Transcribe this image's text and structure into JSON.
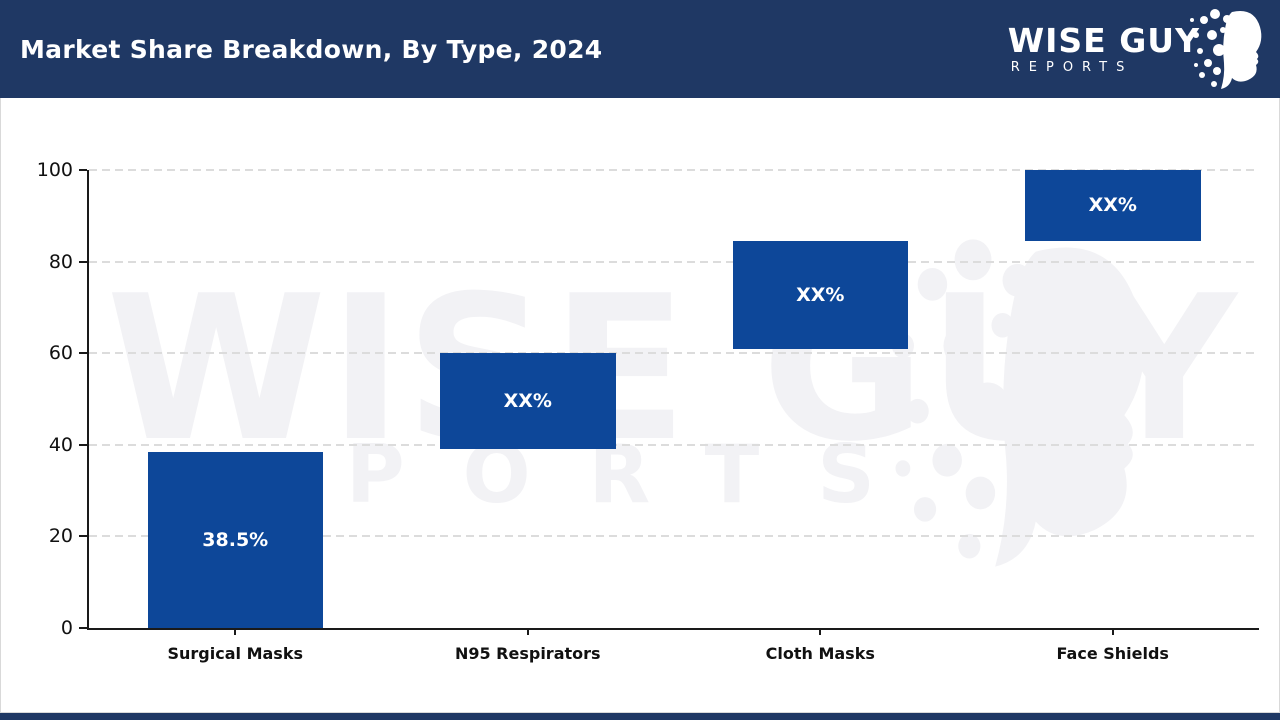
{
  "header": {
    "title": "Market Share Breakdown, By Type, 2024",
    "logo": {
      "line1": "WISE GUY",
      "line2": "REPORTS"
    }
  },
  "watermark": {
    "line1": "WISE GUY",
    "line2": "PORTS"
  },
  "colors": {
    "header_bg": "#1f3864",
    "footer_bg": "#1f3864",
    "bar": "#0d4799",
    "bar_label": "#ffffff",
    "watermark": "#f2f2f5",
    "grid": "#dcdcdc",
    "axis": "#1a1a1a"
  },
  "chart_data": {
    "type": "bar",
    "variant": "waterfall",
    "title": "Market Share Breakdown, By Type, 2024",
    "categories": [
      "Surgical Masks",
      "N95 Respirators",
      "Cloth Masks",
      "Face Shields"
    ],
    "bars": [
      {
        "category": "Surgical Masks",
        "from": 0,
        "to": 38.5,
        "label": "38.5%"
      },
      {
        "category": "N95 Respirators",
        "from": 39,
        "to": 60,
        "label": "XX%"
      },
      {
        "category": "Cloth Masks",
        "from": 61,
        "to": 84.5,
        "label": "XX%"
      },
      {
        "category": "Face Shields",
        "from": 84.5,
        "to": 100,
        "label": "XX%"
      }
    ],
    "yticks": [
      0,
      20,
      40,
      60,
      80,
      100
    ],
    "ylim": [
      0,
      100
    ],
    "xlabel": "",
    "ylabel": "",
    "grid": "horizontal-dashed",
    "legend": "none",
    "bar_width_fraction": 0.6
  }
}
